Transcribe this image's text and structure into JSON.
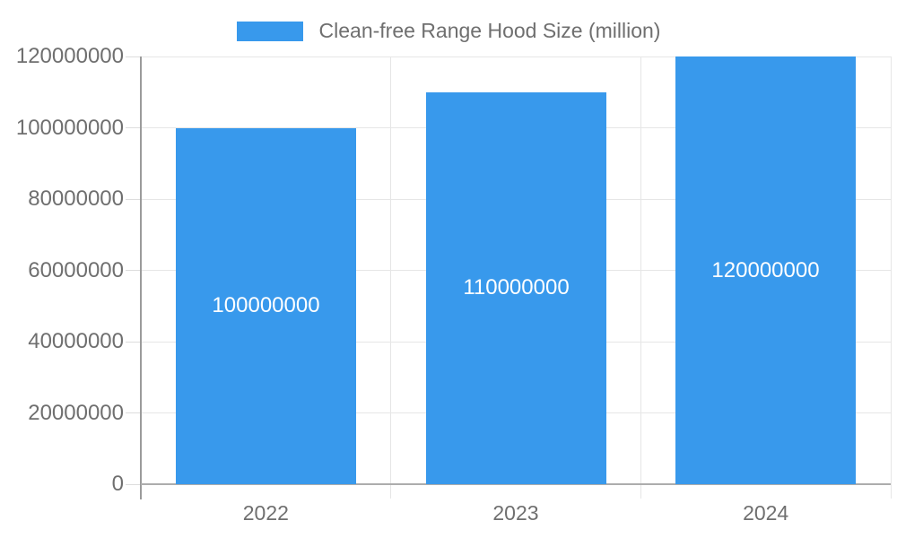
{
  "legend": {
    "label": "Clean-free Range Hood Size (million)"
  },
  "chart_data": {
    "type": "bar",
    "title": "Clean-free Range Hood Size (million)",
    "categories": [
      "2022",
      "2023",
      "2024"
    ],
    "series": [
      {
        "name": "Clean-free Range Hood Size (million)",
        "values": [
          100000000,
          110000000,
          120000000
        ]
      }
    ],
    "data_labels": [
      "100000000",
      "110000000",
      "120000000"
    ],
    "ylim": [
      0,
      120000000
    ],
    "yticks": [
      0,
      20000000,
      40000000,
      60000000,
      80000000,
      100000000,
      120000000
    ],
    "ytick_labels": [
      "0",
      "20000000",
      "40000000",
      "60000000",
      "80000000",
      "100000000",
      "120000000"
    ],
    "xlabel": "",
    "ylabel": "",
    "grid": true,
    "legend_position": "top"
  },
  "colors": {
    "bar": "#3899EC",
    "axis_text": "#6f6f6f",
    "legend_text": "#6f6f6f",
    "data_label_text": "#ffffff",
    "gridline": "#e6e6e6",
    "tick": "#dddddd",
    "axis_line_y": "#9b9b9b",
    "axis_line_x": "#adadad",
    "background": "#ffffff"
  }
}
